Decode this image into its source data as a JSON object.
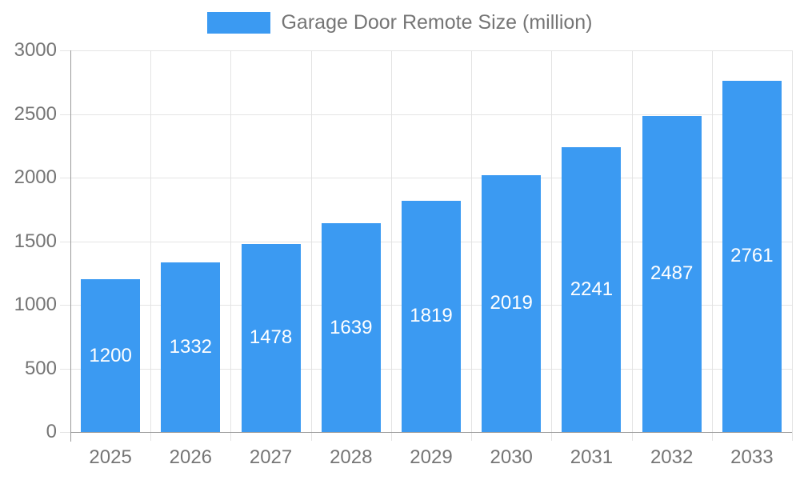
{
  "chart_data": {
    "type": "bar",
    "title": "Garage Door Remote Size (million)",
    "categories": [
      "2025",
      "2026",
      "2027",
      "2028",
      "2029",
      "2030",
      "2031",
      "2032",
      "2033"
    ],
    "values": [
      1200,
      1332,
      1478,
      1639,
      1819,
      2019,
      2241,
      2487,
      2761
    ],
    "xlabel": "",
    "ylabel": "",
    "ylim": [
      0,
      3000
    ],
    "yticks": [
      0,
      500,
      1000,
      1500,
      2000,
      2500,
      3000
    ],
    "grid": true,
    "legend_position": "top",
    "value_label_position": "inside-center"
  },
  "colors": {
    "bar": "#3b9af2",
    "grid": "#e3e3e3",
    "axis": "#9a9a9a",
    "text": "#757575",
    "value_label": "#ffffff",
    "background": "#ffffff"
  }
}
